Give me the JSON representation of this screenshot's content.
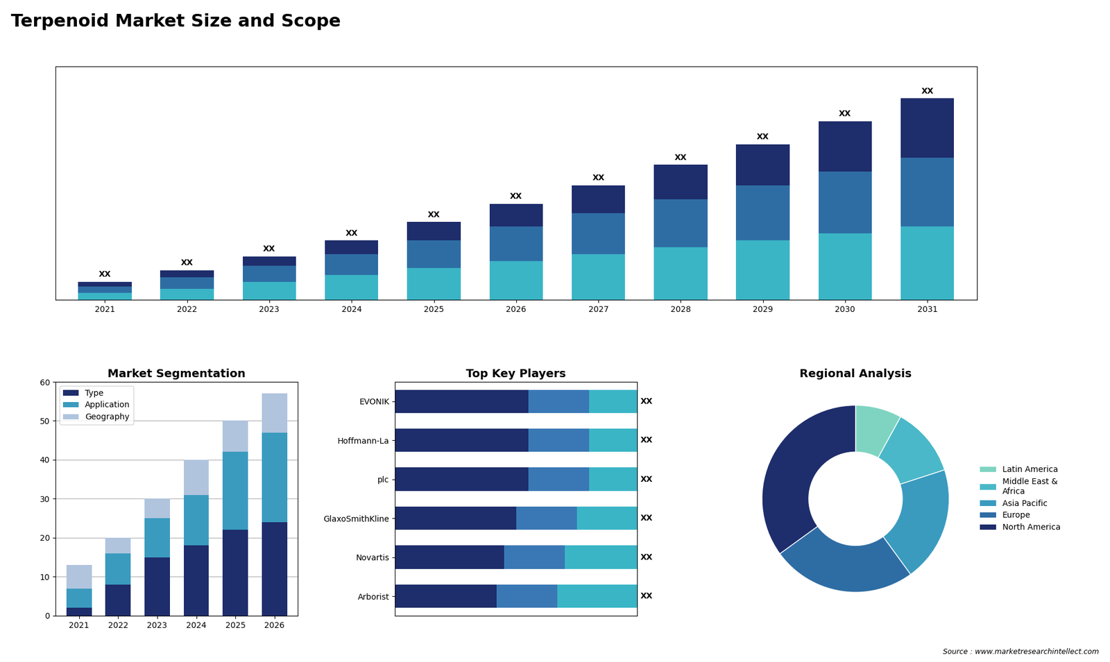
{
  "title": "Terpenoid Market Size and Scope",
  "annotations": [
    "Source : www.marketresearchintellect.com"
  ],
  "chart_data": [
    {
      "type": "bar",
      "stacked": true,
      "categories": [
        "2021",
        "2022",
        "2023",
        "2024",
        "2025",
        "2026",
        "2027",
        "2028",
        "2029",
        "2030",
        "2031"
      ],
      "series": [
        {
          "color": "#3ab5c6",
          "values": [
            3,
            5,
            8,
            11,
            14,
            17,
            20,
            23,
            26,
            29,
            32
          ]
        },
        {
          "color": "#2e6da4",
          "values": [
            3,
            5,
            7,
            9,
            12,
            15,
            18,
            21,
            24,
            27,
            30
          ]
        },
        {
          "color": "#1e2d6b",
          "values": [
            2,
            3,
            4,
            6,
            8,
            10,
            12,
            15,
            18,
            22,
            26
          ],
          "value_labels": [
            "XX",
            "XX",
            "XX",
            "XX",
            "XX",
            "XX",
            "XX",
            "XX",
            "XX",
            "XX",
            "XX"
          ]
        }
      ],
      "ylim": [
        0,
        102
      ],
      "tick_labels": "x",
      "data_labels": true
    },
    {
      "type": "bar",
      "title": "Market Segmentation",
      "stacked": true,
      "categories": [
        "2021",
        "2022",
        "2023",
        "2024",
        "2025",
        "2026"
      ],
      "series": [
        {
          "name": "Type",
          "color": "#1e2d6b",
          "values": [
            2,
            8,
            15,
            18,
            22,
            24
          ]
        },
        {
          "name": "Application",
          "color": "#3a9bbf",
          "values": [
            5,
            8,
            10,
            13,
            20,
            23
          ]
        },
        {
          "name": "Geography",
          "color": "#b0c4de",
          "values": [
            6,
            4,
            5,
            9,
            8,
            10
          ]
        }
      ],
      "ylim": [
        0,
        60
      ],
      "yticks": [
        0,
        10,
        20,
        30,
        40,
        50,
        60
      ],
      "grid": true,
      "legend": "upper left"
    },
    {
      "type": "bar",
      "title": "Top Key Players",
      "orientation": "horizontal",
      "stacked": true,
      "categories": [
        "EVONIK",
        "Hoffmann-La",
        "plc",
        "GlaxoSmithKline",
        "Novartis",
        "Arborist"
      ],
      "series": [
        {
          "color": "#1e2d6b",
          "values": [
            0.55,
            0.55,
            0.55,
            0.5,
            0.45,
            0.42
          ]
        },
        {
          "color": "#3a78b5",
          "values": [
            0.25,
            0.25,
            0.25,
            0.25,
            0.25,
            0.25
          ]
        },
        {
          "color": "#3ab5c6",
          "values": [
            0.2,
            0.2,
            0.2,
            0.25,
            0.3,
            0.33
          ],
          "value_labels": [
            "XX",
            "XX",
            "XX",
            "XX",
            "XX",
            "XX"
          ]
        }
      ],
      "xlim": [
        0,
        1
      ],
      "tick_labels": "y",
      "data_labels": true
    },
    {
      "type": "donut",
      "title": "Regional Analysis",
      "categories": [
        "Latin America",
        "Middle East &\nAfrica",
        "Asia Pacific",
        "Europe",
        "North America"
      ],
      "values": [
        8,
        12,
        20,
        25,
        35
      ],
      "colors": [
        "#7fd4c1",
        "#4ab8c8",
        "#3a9bbf",
        "#2e6da4",
        "#1e2d6b"
      ],
      "legend": "center left"
    }
  ]
}
